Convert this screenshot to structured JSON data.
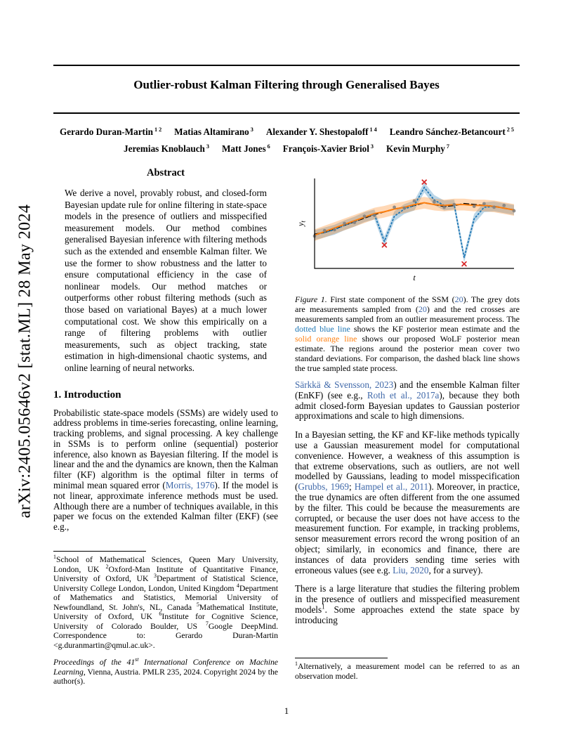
{
  "page": {
    "number": "1"
  },
  "arxiv_sidebar": "arXiv:2405.05646v2  [stat.ML]  28 May 2024",
  "title": "Outlier-robust Kalman Filtering through Generalised Bayes",
  "authors": {
    "line1": [
      {
        "name": "Gerardo Duran-Martin",
        "sup": "1 2"
      },
      {
        "name": "Matias Altamirano",
        "sup": "3"
      },
      {
        "name": "Alexander Y. Shestopaloff",
        "sup": "1 4"
      },
      {
        "name": "Leandro Sánchez-Betancourt",
        "sup": "2 5"
      }
    ],
    "line2": [
      {
        "name": "Jeremias Knoblauch",
        "sup": "3"
      },
      {
        "name": "Matt Jones",
        "sup": "6"
      },
      {
        "name": "François-Xavier Briol",
        "sup": "3"
      },
      {
        "name": "Kevin Murphy",
        "sup": "7"
      }
    ]
  },
  "abstract": {
    "heading": "Abstract",
    "body": "We derive a novel, provably robust, and closed-form Bayesian update rule for online filtering in state-space models in the presence of outliers and misspecified measurement models. Our method combines generalised Bayesian inference with filtering methods such as the extended and ensemble Kalman filter. We use the former to show robustness and the latter to ensure computational efficiency in the case of nonlinear models. Our method matches or outperforms other robust filtering methods (such as those based on variational Bayes) at a much lower computational cost. We show this empirically on a range of filtering problems with outlier measurements, such as object tracking, state estimation in high-dimensional chaotic systems, and online learning of neural networks."
  },
  "sections": {
    "intro_heading": "1. Introduction"
  },
  "paragraphs": {
    "intro": [
      {
        "t": "Probabilistic state-space models (SSMs) are widely used to address problems in time-series forecasting, online learning, tracking problems, and signal processing. A key challenge in SSMs is to perform online (sequential) posterior inference, also known as Bayesian filtering. If the model is linear and the and the dynamics are known, then the Kalman filter (KF) algorithm is the optimal filter in terms of minimal mean squared error ("
      },
      {
        "t": "Morris, 1976",
        "s": "cite"
      },
      {
        "t": "). If the model is not linear, approximate inference methods must be used. Although there are a number of techniques available, in this paper we focus on the extended Kalman filter (EKF) (see e.g.,"
      }
    ],
    "p1": [
      {
        "t": "Särkkä & Svensson, 2023",
        "s": "cite"
      },
      {
        "t": ") and the ensemble Kalman filter (EnKF) (see e.g., "
      },
      {
        "t": "Roth et al., 2017a",
        "s": "cite"
      },
      {
        "t": "), because they both admit closed-form Bayesian updates to Gaussian posterior approximations and scale to high dimensions."
      }
    ],
    "p2": [
      {
        "t": "In a Bayesian setting, the KF and KF-like methods typically use a Gaussian measurement model for computational convenience. However, a weakness of this assumption is that extreme observations, such as outliers, are not well modelled by Gaussians, leading to model misspecification ("
      },
      {
        "t": "Grubbs, 1969",
        "s": "cite"
      },
      {
        "t": "; "
      },
      {
        "t": "Hampel et al., 2011",
        "s": "cite"
      },
      {
        "t": "). Moreover, in practice, the true dynamics are often different from the one assumed by the filter. This could be because the measurements are corrupted, or because the user does not have access to the measurement function. For example, in tracking problems, sensor measurement errors record the wrong position of an object; similarly, in economics and finance, there are instances of data providers sending time series with erroneous values (see e.g. "
      },
      {
        "t": "Liu, 2020",
        "s": "cite"
      },
      {
        "t": ", for a survey)."
      }
    ],
    "p3": [
      {
        "t": "There is a large literature that studies the filtering problem in the presence of outliers and misspecified measurement models"
      },
      {
        "t": "1",
        "s": "sup"
      },
      {
        "t": ". Some approaches extend the state space by introducing"
      }
    ]
  },
  "figure": {
    "caption": [
      {
        "t": "Figure 1.",
        "s": "italic"
      },
      {
        "t": " First state component of the SSM ("
      },
      {
        "t": "20",
        "s": "cite"
      },
      {
        "t": "). The grey dots are measurements sampled from ("
      },
      {
        "t": "20",
        "s": "cite"
      },
      {
        "t": ") and the red crosses are measurements sampled from an outlier measurement process. The "
      },
      {
        "t": "dotted blue line",
        "s": "blue"
      },
      {
        "t": " shows the KF posterior mean estimate and the "
      },
      {
        "t": "solid orange line",
        "s": "orange"
      },
      {
        "t": " shows our proposed WoLF posterior mean estimate. The regions around the posterior mean cover two standard deviations. For comparison, the dashed black line shows the true sampled state process."
      }
    ]
  },
  "footnotes": {
    "affiliations": [
      {
        "t": "1",
        "s": "sup"
      },
      {
        "t": "School of Mathematical Sciences, Queen Mary University, London, UK "
      },
      {
        "t": "2",
        "s": "sup"
      },
      {
        "t": "Oxford-Man Institute of Quantitative Finance, University of Oxford, UK "
      },
      {
        "t": "3",
        "s": "sup"
      },
      {
        "t": "Department of Statistical Science, University College London, London, United Kingdom "
      },
      {
        "t": "4",
        "s": "sup"
      },
      {
        "t": "Department of Mathematics and Statistics, Memorial University of Newfoundland, St. John's, NL, Canada "
      },
      {
        "t": "5",
        "s": "sup"
      },
      {
        "t": "Mathematical Institute, University of Oxford, UK "
      },
      {
        "t": "6",
        "s": "sup"
      },
      {
        "t": "Institute for Cognitive Science, University of Colorado Boulder, US "
      },
      {
        "t": "7",
        "s": "sup"
      },
      {
        "t": "Google DeepMind. Correspondence to: Gerardo Duran-Martin <g.duranmartin@qmul.ac.uk>."
      }
    ],
    "proceedings": [
      {
        "t": "Proceedings of the 41",
        "s": "italic"
      },
      {
        "t": "st",
        "s": "italic sup"
      },
      {
        "t": " International Conference on Machine Learning",
        "s": "italic"
      },
      {
        "t": ", Vienna, Austria. PMLR 235, 2024. Copyright 2024 by the author(s)."
      }
    ],
    "right": [
      {
        "t": "1",
        "s": "sup"
      },
      {
        "t": "Alternatively, a measurement model can be referred to as an observation model."
      }
    ]
  },
  "chart_data": {
    "type": "line",
    "title": "",
    "xlabel": "t",
    "ylabel": "y_t",
    "xlim": [
      0,
      20
    ],
    "ylim": [
      0,
      1
    ],
    "ticks_visible": false,
    "grid": false,
    "legend": "none",
    "x": [
      0,
      1,
      2,
      3,
      4,
      5,
      6,
      7,
      8,
      9,
      10,
      11,
      12,
      13,
      14,
      15,
      16,
      17,
      18,
      19,
      20
    ],
    "series": [
      {
        "name": "true state (dashed black line)",
        "kind": "line",
        "color": "#000000",
        "dash": "dashed",
        "values": [
          0.38,
          0.4,
          0.44,
          0.48,
          0.52,
          0.56,
          0.6,
          0.63,
          0.66,
          0.68,
          0.7,
          0.73,
          0.71,
          0.69,
          0.7,
          0.72,
          0.71,
          0.7,
          0.69,
          0.67,
          0.65
        ]
      },
      {
        "name": "KF posterior mean (dotted blue line, ±2 std band)",
        "kind": "line",
        "color": "#1f77b4",
        "dash": "dotted",
        "band": 0.055,
        "values": [
          0.37,
          0.4,
          0.43,
          0.48,
          0.52,
          0.57,
          0.6,
          0.3,
          0.58,
          0.66,
          0.7,
          0.9,
          0.76,
          0.7,
          0.71,
          0.12,
          0.55,
          0.68,
          0.69,
          0.67,
          0.65
        ]
      },
      {
        "name": "WoLF posterior mean (solid orange line, ±2 std band)",
        "kind": "line",
        "color": "#ff7f0e",
        "dash": "solid",
        "band": 0.065,
        "values": [
          0.37,
          0.41,
          0.45,
          0.49,
          0.53,
          0.57,
          0.61,
          0.63,
          0.66,
          0.68,
          0.71,
          0.73,
          0.71,
          0.7,
          0.71,
          0.71,
          0.7,
          0.7,
          0.69,
          0.67,
          0.65
        ]
      },
      {
        "name": "measurements (grey dots)",
        "kind": "scatter",
        "color": "#7f7f7f",
        "values": [
          0.36,
          0.42,
          0.43,
          0.5,
          0.51,
          0.58,
          0.59,
          null,
          0.68,
          0.67,
          0.75,
          null,
          0.74,
          0.68,
          0.71,
          null,
          0.69,
          0.72,
          0.68,
          0.7,
          0.64
        ]
      }
    ],
    "outliers": {
      "name": "outlier measurements (red crosses)",
      "color": "#d62728",
      "points": [
        {
          "x": 7,
          "y": 0.26
        },
        {
          "x": 11,
          "y": 0.96
        },
        {
          "x": 15,
          "y": 0.05
        }
      ]
    }
  }
}
